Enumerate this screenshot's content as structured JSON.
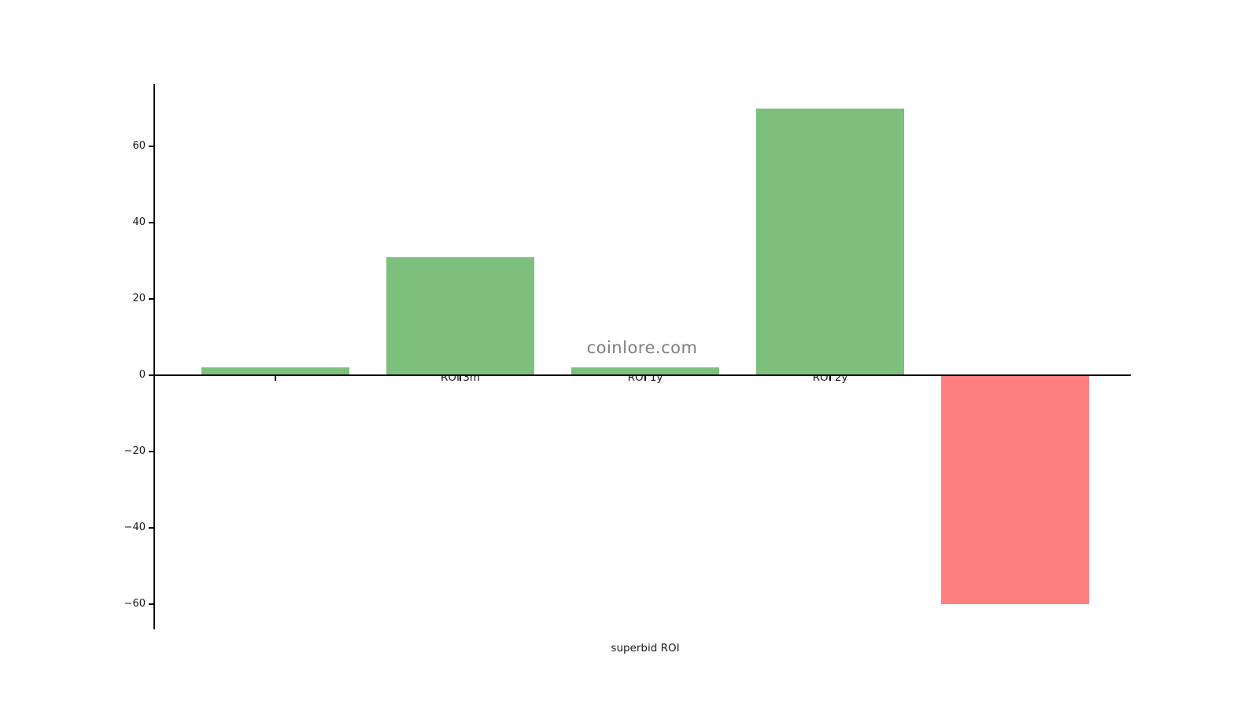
{
  "page": {
    "background": "#ffffff"
  },
  "watermark": {
    "text": "coinlore.com",
    "color": "#808080"
  },
  "chart_data": {
    "type": "bar",
    "title": "",
    "xlabel": "superbid ROI",
    "ylabel": "",
    "categories": [
      "",
      "ROI 3m",
      "ROI 1y",
      "ROI 2y",
      ""
    ],
    "values": [
      2,
      31,
      2,
      70,
      -60
    ],
    "bar_colors": [
      "#7dbf7d",
      "#7dbf7d",
      "#7dbf7d",
      "#7dbf7d",
      "#fe8080"
    ],
    "positive_color": "#7dbf7d",
    "negative_color": "#fe8080",
    "yticks": [
      60,
      40,
      20,
      0,
      -20,
      -40,
      -60
    ],
    "ylim": [
      -66.6,
      76.3
    ],
    "grid": false,
    "legend_position": "none",
    "axis_color": "#000000",
    "tick_label_color": "#1a1a1a"
  }
}
